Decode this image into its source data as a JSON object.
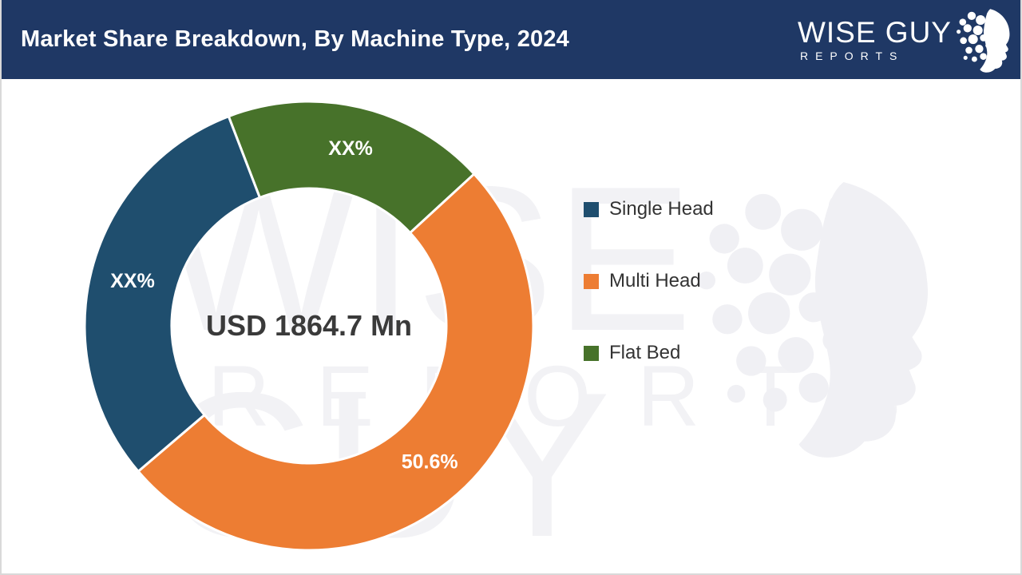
{
  "header": {
    "title": "Market Share Breakdown, By Machine Type, 2024",
    "logo": {
      "line1": "WISE GUY",
      "line2": "REPORTS"
    }
  },
  "watermark": {
    "line1": "WISE GUY",
    "line2": "REPORTS"
  },
  "chart_data": {
    "type": "pie",
    "subtype": "donut",
    "title": "Market Share Breakdown, By Machine Type, 2024",
    "center_label": "USD 1864.7 Mn",
    "legend_position": "right",
    "start_angle_deg": -21,
    "order_clockwise": [
      "Flat Bed",
      "Multi Head",
      "Single Head"
    ],
    "series": [
      {
        "name": "Single Head",
        "label": "XX%",
        "value_pct": 30.4,
        "color": "#1f4e6e"
      },
      {
        "name": "Multi Head",
        "label": "50.6%",
        "value_pct": 50.6,
        "color": "#ed7d33"
      },
      {
        "name": "Flat Bed",
        "label": "XX%",
        "value_pct": 19.0,
        "color": "#47722a"
      }
    ]
  },
  "colors": {
    "header_bg": "#1f3865",
    "slice_separator": "#ffffff",
    "center_text": "#3a3a3a",
    "legend_text": "#333333",
    "watermark": "#f2f2f5",
    "page_border": "#d9d9d9"
  }
}
